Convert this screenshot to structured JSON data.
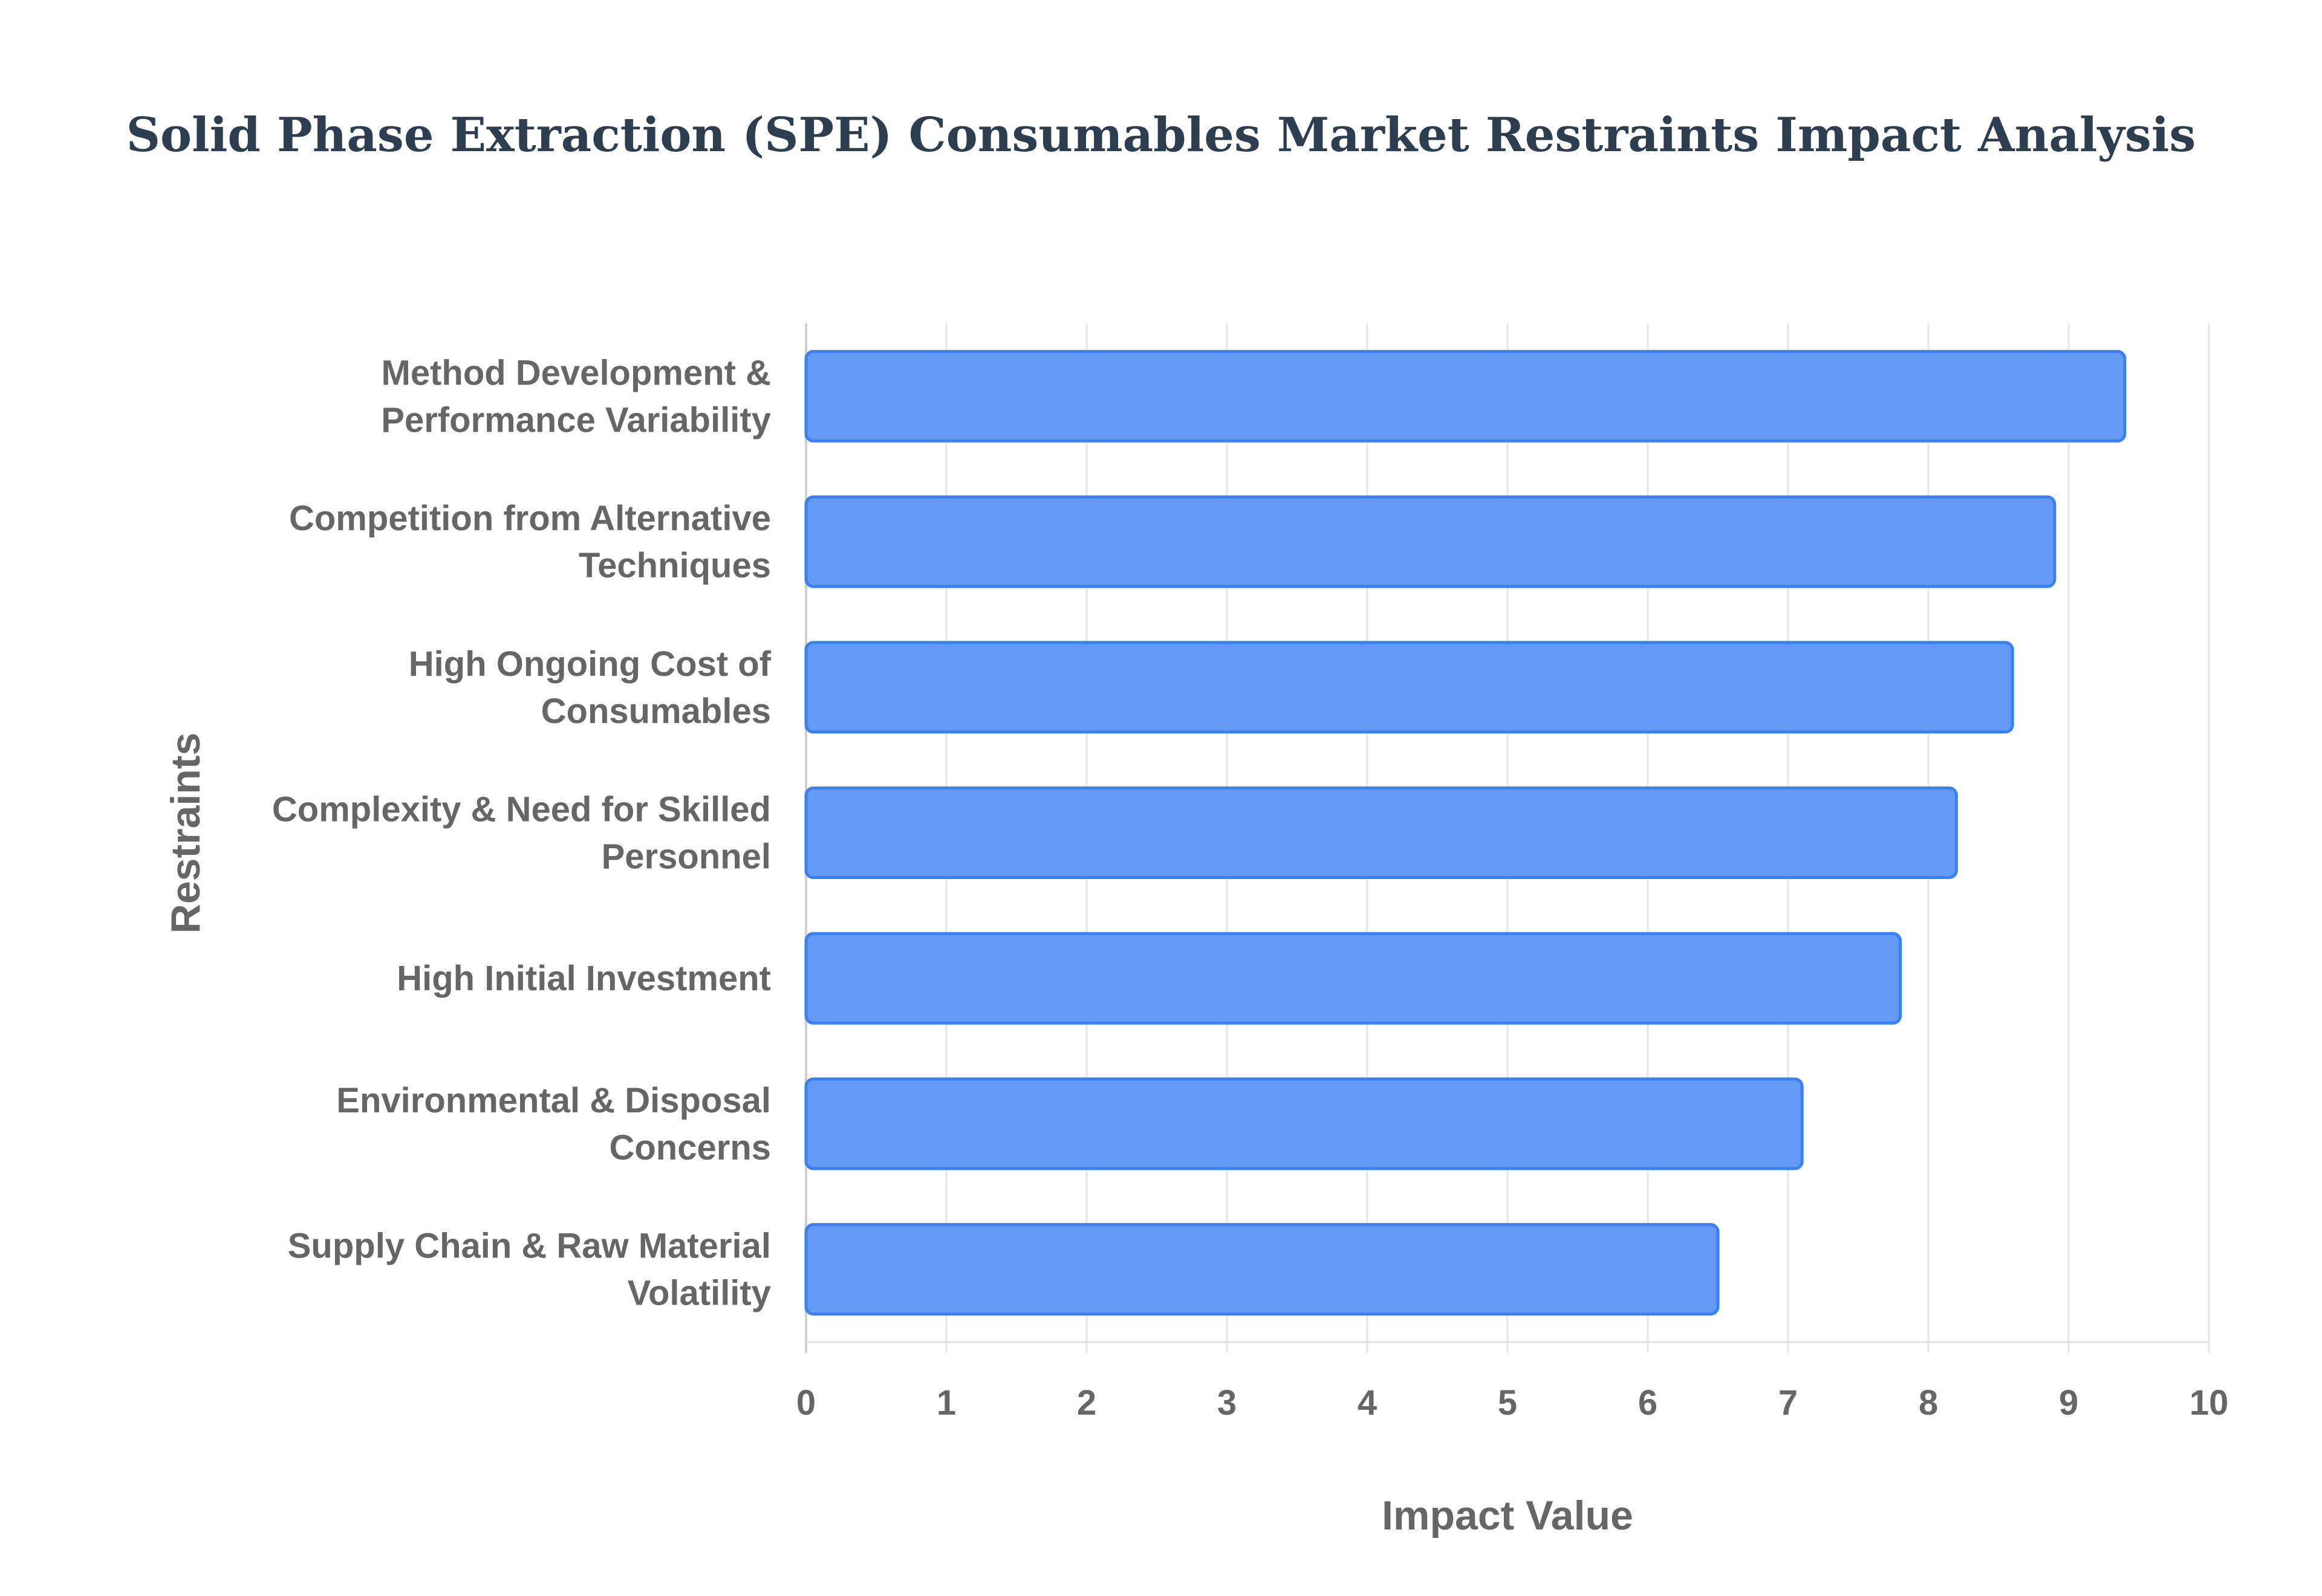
{
  "title": "Solid Phase Extraction (SPE) Consumables Market Restraints Impact Analysis",
  "chart_data": {
    "type": "bar",
    "orientation": "horizontal",
    "title": "Solid Phase Extraction (SPE) Consumables Market Restraints Impact Analysis",
    "xlabel": "Impact Value",
    "ylabel": "Restraints",
    "xlim": [
      0,
      10
    ],
    "xticks": [
      "0",
      "1",
      "2",
      "3",
      "4",
      "5",
      "6",
      "7",
      "8",
      "9",
      "10"
    ],
    "grid": true,
    "legend": "none",
    "bar_color": "#6499f5",
    "bar_border_color": "#3b7ff0",
    "categories": [
      [
        "Method Development &",
        "Performance Variability"
      ],
      [
        "Competition from Alternative",
        "Techniques"
      ],
      [
        "High Ongoing Cost of",
        "Consumables"
      ],
      [
        "Complexity & Need for Skilled",
        "Personnel"
      ],
      [
        "High Initial Investment"
      ],
      [
        "Environmental & Disposal",
        "Concerns"
      ],
      [
        "Supply Chain & Raw Material",
        "Volatility"
      ]
    ],
    "values": [
      9.4,
      8.9,
      8.6,
      8.2,
      7.8,
      7.1,
      6.5
    ]
  }
}
